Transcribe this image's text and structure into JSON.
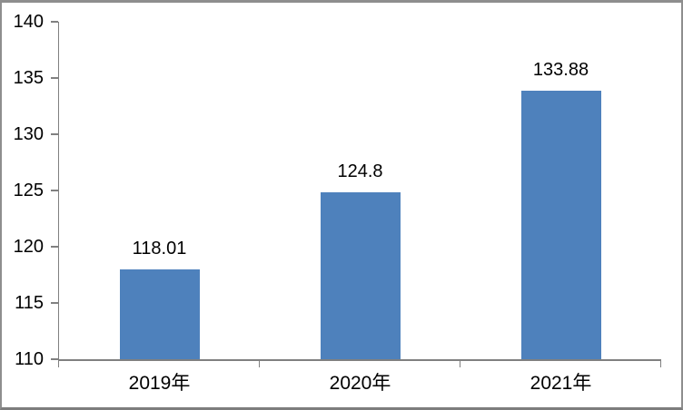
{
  "chart_data": {
    "type": "bar",
    "categories": [
      "2019年",
      "2020年",
      "2021年"
    ],
    "values": [
      118.01,
      124.8,
      133.88
    ],
    "data_labels": [
      "118.01",
      "124.8",
      "133.88"
    ],
    "title": "",
    "xlabel": "",
    "ylabel": "",
    "ylim": [
      110,
      140
    ],
    "yticks": [
      110,
      115,
      120,
      125,
      130,
      135,
      140
    ],
    "grid": false,
    "legend": "none",
    "colors": {
      "bar": "#4e81bc",
      "axis": "#808080",
      "text": "#000000",
      "frame_border": "#8e8e8e",
      "background": "#ffffff"
    }
  }
}
